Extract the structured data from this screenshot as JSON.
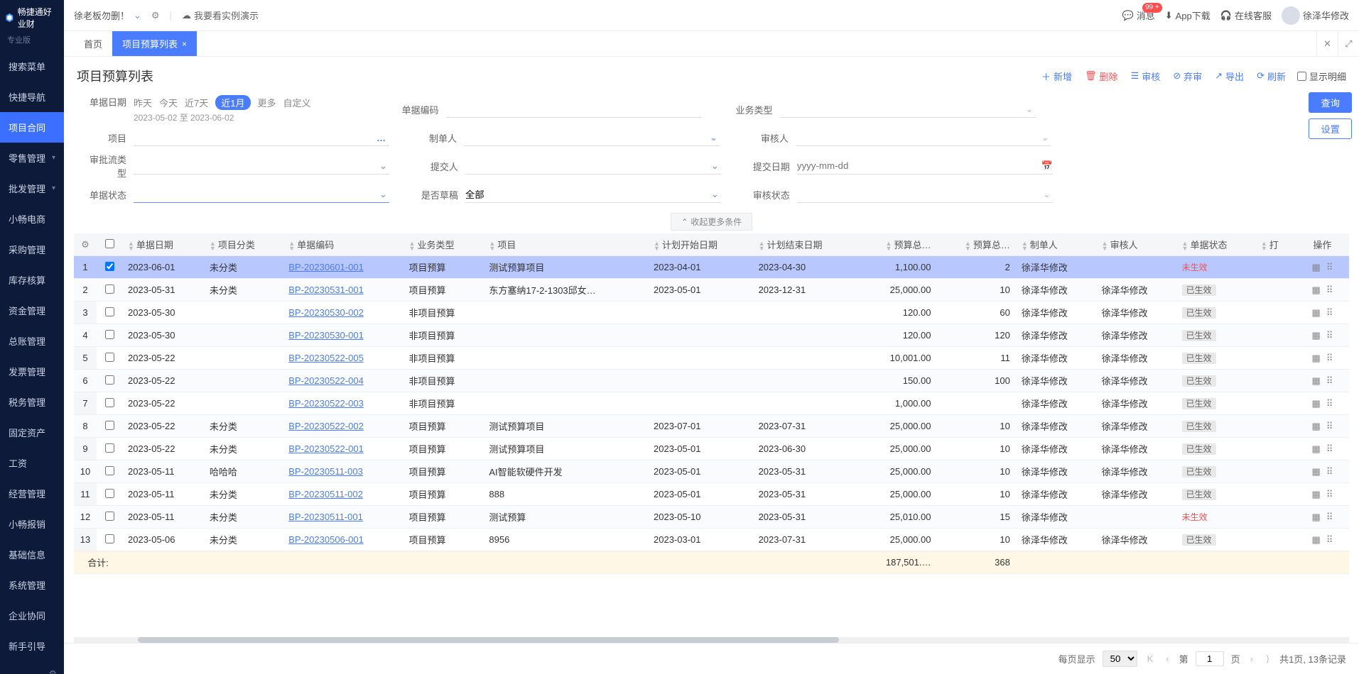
{
  "brand": {
    "name": "畅捷通好业财",
    "edition": "专业版"
  },
  "sidebar": {
    "items": [
      {
        "label": "搜索菜单"
      },
      {
        "label": "快捷导航"
      },
      {
        "label": "项目合同",
        "active": true
      },
      {
        "label": "零售管理",
        "caret": true
      },
      {
        "label": "批发管理",
        "caret": true
      },
      {
        "label": "小畅电商"
      },
      {
        "label": "采购管理"
      },
      {
        "label": "库存核算"
      },
      {
        "label": "资金管理"
      },
      {
        "label": "总账管理"
      },
      {
        "label": "发票管理"
      },
      {
        "label": "税务管理"
      },
      {
        "label": "固定资产"
      },
      {
        "label": "工资"
      },
      {
        "label": "经营管理"
      },
      {
        "label": "小畅报销"
      },
      {
        "label": "基础信息"
      },
      {
        "label": "系统管理"
      },
      {
        "label": "企业协同"
      },
      {
        "label": "新手引导"
      }
    ]
  },
  "topbar": {
    "org": "徐老板勿删！",
    "demo": "我要看实例演示",
    "msg": "消息",
    "msg_badge": "99 +",
    "download": "App下载",
    "support": "在线客服",
    "user": "徐泽华修改"
  },
  "tabs": {
    "home": "首页",
    "current": "项目预算列表"
  },
  "page": {
    "title": "项目预算列表"
  },
  "actions": {
    "add": "新增",
    "del": "删除",
    "audit": "审核",
    "abandon": "弃审",
    "export": "导出",
    "refresh": "刷新",
    "detail": "显示明细"
  },
  "filters": {
    "date_label": "单据日期",
    "date_chips": {
      "yesterday": "昨天",
      "today": "今天",
      "week": "近7天",
      "month": "近1月",
      "more": "更多",
      "custom": "自定义"
    },
    "date_range": "2023-05-02 至 2023-06-02",
    "code_label": "单据编码",
    "biztype_label": "业务类型",
    "project_label": "项目",
    "maker_label": "制单人",
    "auditor_label": "审核人",
    "flowtype_label": "审批流类型",
    "submitter_label": "提交人",
    "submitdate_label": "提交日期",
    "submitdate_ph": "yyyy-mm-dd",
    "status_label": "单据状态",
    "draft_label": "是否草稿",
    "draft_value": "全部",
    "auditstatus_label": "审核状态",
    "collapse": "收起更多条件",
    "query": "查询",
    "settings": "设置"
  },
  "table": {
    "cols": {
      "c1": "单据日期",
      "c2": "项目分类",
      "c3": "单据编码",
      "c4": "业务类型",
      "c5": "项目",
      "c6": "计划开始日期",
      "c7": "计划结束日期",
      "c8": "预算总…",
      "c9": "预算总…",
      "c10": "制单人",
      "c11": "审核人",
      "c12": "单据状态",
      "c13": "打",
      "ops": "操作"
    },
    "rows": [
      {
        "n": "1",
        "date": "2023-06-01",
        "cat": "未分类",
        "code": "BP-20230601-001",
        "biz": "项目预算",
        "proj": "测试预算项目",
        "start": "2023-04-01",
        "end": "2023-04-30",
        "amt": "1,100.00",
        "cnt": "2",
        "maker": "徐泽华修改",
        "auditor": "",
        "status": "未生效",
        "bad": true,
        "sel": true
      },
      {
        "n": "2",
        "date": "2023-05-31",
        "cat": "未分类",
        "code": "BP-20230531-001",
        "biz": "项目预算",
        "proj": "东方塞纳17-2-1303邱女…",
        "start": "2023-05-01",
        "end": "2023-12-31",
        "amt": "25,000.00",
        "cnt": "10",
        "maker": "徐泽华修改",
        "auditor": "徐泽华修改",
        "status": "已生效"
      },
      {
        "n": "3",
        "date": "2023-05-30",
        "cat": "",
        "code": "BP-20230530-002",
        "biz": "非项目预算",
        "proj": "",
        "start": "",
        "end": "",
        "amt": "120.00",
        "cnt": "60",
        "maker": "徐泽华修改",
        "auditor": "徐泽华修改",
        "status": "已生效"
      },
      {
        "n": "4",
        "date": "2023-05-30",
        "cat": "",
        "code": "BP-20230530-001",
        "biz": "非项目预算",
        "proj": "",
        "start": "",
        "end": "",
        "amt": "120.00",
        "cnt": "120",
        "maker": "徐泽华修改",
        "auditor": "徐泽华修改",
        "status": "已生效"
      },
      {
        "n": "5",
        "date": "2023-05-22",
        "cat": "",
        "code": "BP-20230522-005",
        "biz": "非项目预算",
        "proj": "",
        "start": "",
        "end": "",
        "amt": "10,001.00",
        "cnt": "11",
        "maker": "徐泽华修改",
        "auditor": "徐泽华修改",
        "status": "已生效"
      },
      {
        "n": "6",
        "date": "2023-05-22",
        "cat": "",
        "code": "BP-20230522-004",
        "biz": "非项目预算",
        "proj": "",
        "start": "",
        "end": "",
        "amt": "150.00",
        "cnt": "100",
        "maker": "徐泽华修改",
        "auditor": "徐泽华修改",
        "status": "已生效"
      },
      {
        "n": "7",
        "date": "2023-05-22",
        "cat": "",
        "code": "BP-20230522-003",
        "biz": "非项目预算",
        "proj": "",
        "start": "",
        "end": "",
        "amt": "1,000.00",
        "cnt": "",
        "maker": "徐泽华修改",
        "auditor": "徐泽华修改",
        "status": "已生效"
      },
      {
        "n": "8",
        "date": "2023-05-22",
        "cat": "未分类",
        "code": "BP-20230522-002",
        "biz": "项目预算",
        "proj": "测试预算项目",
        "start": "2023-07-01",
        "end": "2023-07-31",
        "amt": "25,000.00",
        "cnt": "10",
        "maker": "徐泽华修改",
        "auditor": "徐泽华修改",
        "status": "已生效"
      },
      {
        "n": "9",
        "date": "2023-05-22",
        "cat": "未分类",
        "code": "BP-20230522-001",
        "biz": "项目预算",
        "proj": "测试预算项目",
        "start": "2023-05-01",
        "end": "2023-06-30",
        "amt": "25,000.00",
        "cnt": "10",
        "maker": "徐泽华修改",
        "auditor": "徐泽华修改",
        "status": "已生效"
      },
      {
        "n": "10",
        "date": "2023-05-11",
        "cat": "哈哈哈",
        "code": "BP-20230511-003",
        "biz": "项目预算",
        "proj": "AI智能软硬件开发",
        "start": "2023-05-01",
        "end": "2023-05-31",
        "amt": "25,000.00",
        "cnt": "10",
        "maker": "徐泽华修改",
        "auditor": "徐泽华修改",
        "status": "已生效"
      },
      {
        "n": "11",
        "date": "2023-05-11",
        "cat": "未分类",
        "code": "BP-20230511-002",
        "biz": "项目预算",
        "proj": "888",
        "start": "2023-05-01",
        "end": "2023-05-31",
        "amt": "25,000.00",
        "cnt": "10",
        "maker": "徐泽华修改",
        "auditor": "徐泽华修改",
        "status": "已生效"
      },
      {
        "n": "12",
        "date": "2023-05-11",
        "cat": "未分类",
        "code": "BP-20230511-001",
        "biz": "项目预算",
        "proj": "测试预算",
        "start": "2023-05-10",
        "end": "2023-05-31",
        "amt": "25,010.00",
        "cnt": "15",
        "maker": "徐泽华修改",
        "auditor": "",
        "status": "未生效",
        "bad": true
      },
      {
        "n": "13",
        "date": "2023-05-06",
        "cat": "未分类",
        "code": "BP-20230506-001",
        "biz": "项目预算",
        "proj": "8956",
        "start": "2023-03-01",
        "end": "2023-07-31",
        "amt": "25,000.00",
        "cnt": "10",
        "maker": "徐泽华修改",
        "auditor": "徐泽华修改",
        "status": "已生效"
      }
    ],
    "total": {
      "label": "合计:",
      "amt": "187,501.…",
      "cnt": "368"
    }
  },
  "pager": {
    "perpage_label": "每页显示",
    "perpage": "50",
    "page_prefix": "第",
    "page": "1",
    "page_suffix": "页",
    "summary": "共1页, 13条记录"
  }
}
